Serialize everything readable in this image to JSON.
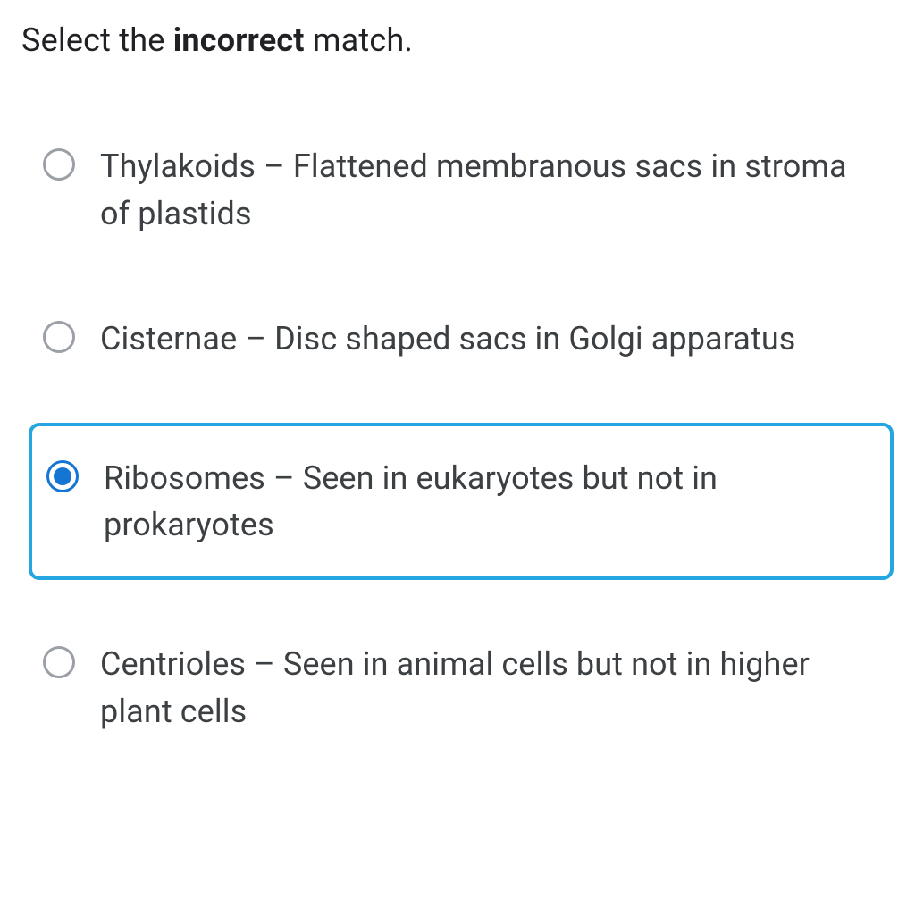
{
  "question": {
    "prefix": "Select the ",
    "bold_word": "incorrect",
    "suffix": " match."
  },
  "options": [
    {
      "text": "Thylakoids – Flattened membranous sacs in stroma of plastids",
      "selected": false
    },
    {
      "text": "Cisternae – Disc shaped sacs in Golgi apparatus",
      "selected": false
    },
    {
      "text": "Ribosomes – Seen in eukaryotes but not in prokaryotes",
      "selected": true
    },
    {
      "text": "Centrioles – Seen in animal cells but not in higher plant cells",
      "selected": false
    }
  ],
  "colors": {
    "text_primary": "#202124",
    "text_option": "#3c4043",
    "radio_border_unchecked": "#9aa0a6",
    "radio_border_checked": "#1476d2",
    "radio_fill_checked": "#1476d2",
    "selected_outline": "#26a6e0",
    "background": "#ffffff"
  }
}
